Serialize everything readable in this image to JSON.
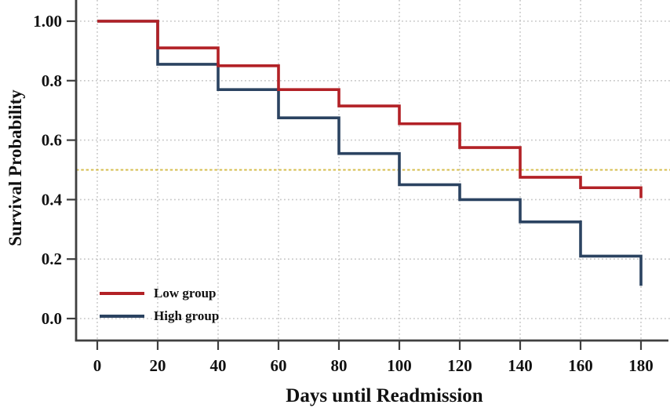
{
  "chart_data": {
    "type": "line",
    "variant": "kaplan_meier_survival_step",
    "title": "",
    "xlabel": "Days until Readmission",
    "ylabel": "Survival Probability",
    "xlim": [
      0,
      190
    ],
    "ylim": [
      0.0,
      1.07
    ],
    "x_ticks": [
      0,
      20,
      40,
      60,
      80,
      100,
      120,
      140,
      160,
      180
    ],
    "x_tick_labels": [
      "0",
      "20",
      "40",
      "60",
      "80",
      "100",
      "120",
      "140",
      "160",
      "180"
    ],
    "y_ticks": [
      0.0,
      0.2,
      0.4,
      0.6,
      0.8,
      1.0
    ],
    "y_tick_labels": [
      "0.0",
      "0.2",
      "0.4",
      "0.6",
      "0.8",
      "1.00"
    ],
    "grid": {
      "visible": true,
      "style": "dotted",
      "color": "#c7c7c7"
    },
    "reference_line": {
      "y": 0.5,
      "style": "dashed",
      "color": "#d6bd4e"
    },
    "step_mode": "post",
    "series": [
      {
        "name": "Low group",
        "color": "#b22126",
        "x": [
          0,
          20,
          40,
          60,
          80,
          100,
          120,
          140,
          160,
          180
        ],
        "y": [
          1.0,
          0.91,
          0.85,
          0.77,
          0.715,
          0.655,
          0.575,
          0.475,
          0.44,
          0.405
        ]
      },
      {
        "name": "High group",
        "color": "#2b4361",
        "x": [
          0,
          20,
          40,
          60,
          80,
          100,
          120,
          140,
          160,
          180
        ],
        "y": [
          1.0,
          0.855,
          0.77,
          0.675,
          0.555,
          0.45,
          0.4,
          0.325,
          0.21,
          0.11
        ]
      }
    ],
    "legend": {
      "position": "lower_left"
    }
  },
  "colors": {
    "axis": "#3f3f3f",
    "text": "#111111",
    "background": "#ffffff"
  }
}
